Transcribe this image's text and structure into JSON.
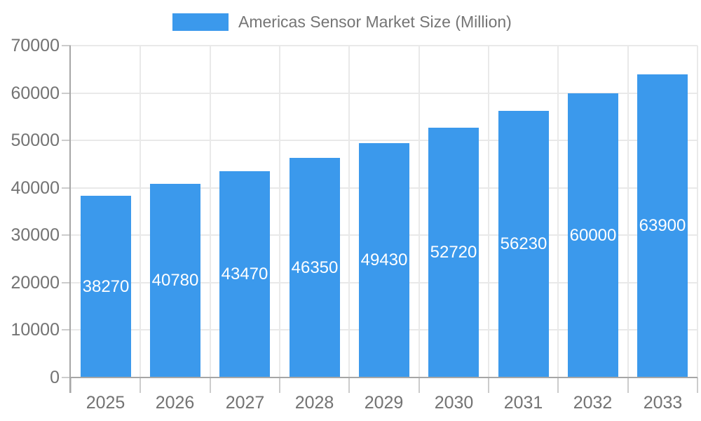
{
  "legend": {
    "items": [
      {
        "label": "Americas Sensor Market Size (Million)",
        "color": "#3B99EC"
      }
    ]
  },
  "chart_data": {
    "type": "bar",
    "title": "Americas Sensor Market Size (Million)",
    "categories": [
      "2025",
      "2026",
      "2027",
      "2028",
      "2029",
      "2030",
      "2031",
      "2032",
      "2033"
    ],
    "series": [
      {
        "name": "Americas Sensor Market Size (Million)",
        "values": [
          38270,
          40780,
          43470,
          46350,
          49430,
          52720,
          56230,
          60000,
          63900
        ],
        "color": "#3B99EC"
      }
    ],
    "value_labels": [
      "38270",
      "40780",
      "43470",
      "46350",
      "49430",
      "52720",
      "56230",
      "60000",
      "63900"
    ],
    "xlabel": "",
    "ylabel": "",
    "ylim": [
      0,
      70000
    ],
    "ytick_step": 10000,
    "yticks": [
      "0",
      "10000",
      "20000",
      "30000",
      "40000",
      "50000",
      "60000",
      "70000"
    ],
    "grid": true,
    "legend_position": "top",
    "colors": {
      "bar": "#3B99EC",
      "gridline": "#e9e9e9",
      "axis": "#a6a6a6",
      "tick_mark": "#cccccc",
      "axis_text": "#737373",
      "bar_label_text": "#ffffff",
      "background": "#ffffff"
    }
  }
}
